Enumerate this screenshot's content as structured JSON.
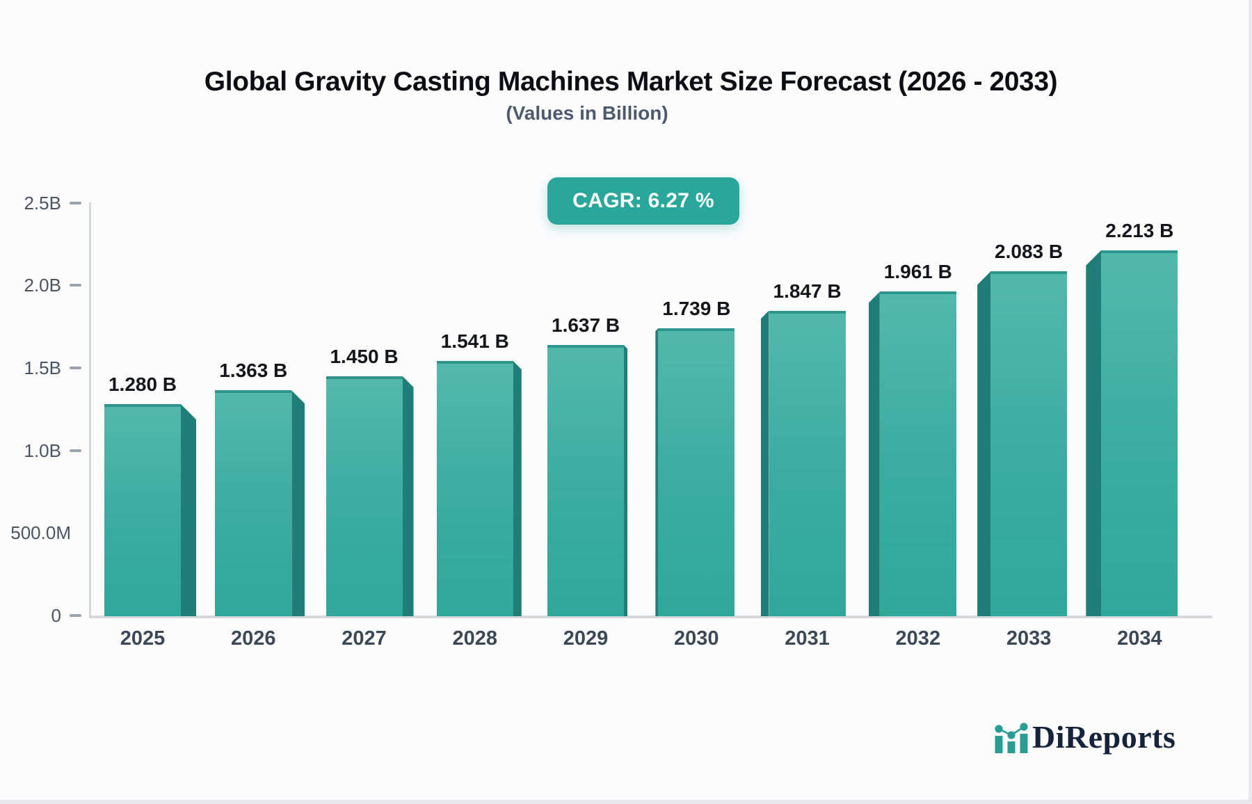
{
  "header": {
    "title": "Global Gravity Casting Machines Market Size Forecast (2026 - 2033)",
    "subtitle": "(Values in Billion)",
    "cagr_badge": "CAGR: 6.27 %"
  },
  "colors": {
    "bar_face_top": "#53b8ac",
    "bar_face_bottom": "#2fa89a",
    "bar_side": "#1f7e77",
    "bar_top_edge": "#2d968c",
    "badge_background": "#29a79a",
    "axis_line": "#d4d7dc",
    "logo_teal": "#2a9d93",
    "logo_navy": "#15233d"
  },
  "chart_data": {
    "type": "bar",
    "title": "Global Gravity Casting Machines Market Size Forecast (2026 - 2033)",
    "subtitle": "(Values in Billion)",
    "cagr_percent": 6.27,
    "categories": [
      "2025",
      "2026",
      "2027",
      "2028",
      "2029",
      "2030",
      "2031",
      "2032",
      "2033",
      "2034"
    ],
    "values": [
      1.28,
      1.363,
      1.45,
      1.541,
      1.637,
      1.739,
      1.847,
      1.961,
      2.083,
      2.213
    ],
    "bar_labels": [
      "1.280 B",
      "1.363 B",
      "1.450 B",
      "1.541 B",
      "1.637 B",
      "1.739 B",
      "1.847 B",
      "1.961 B",
      "2.083 B",
      "2.213 B"
    ],
    "unit": "Billion",
    "xlabel": "",
    "ylabel": "",
    "ylim": [
      0,
      2.5
    ],
    "yticks": [
      {
        "label": "2.5B",
        "value": 2.5,
        "dash": true
      },
      {
        "label": "2.0B",
        "value": 2.0,
        "dash": true
      },
      {
        "label": "1.5B",
        "value": 1.5,
        "dash": true
      },
      {
        "label": "1.0B",
        "value": 1.0,
        "dash": true
      },
      {
        "label": "500.0M",
        "value": 0.5,
        "dash": false
      },
      {
        "label": "0",
        "value": 0.0,
        "dash": true
      }
    ],
    "grid": false,
    "legend": null,
    "style": "3d-perspective-bars"
  },
  "footer": {
    "brand": "DiReports"
  }
}
